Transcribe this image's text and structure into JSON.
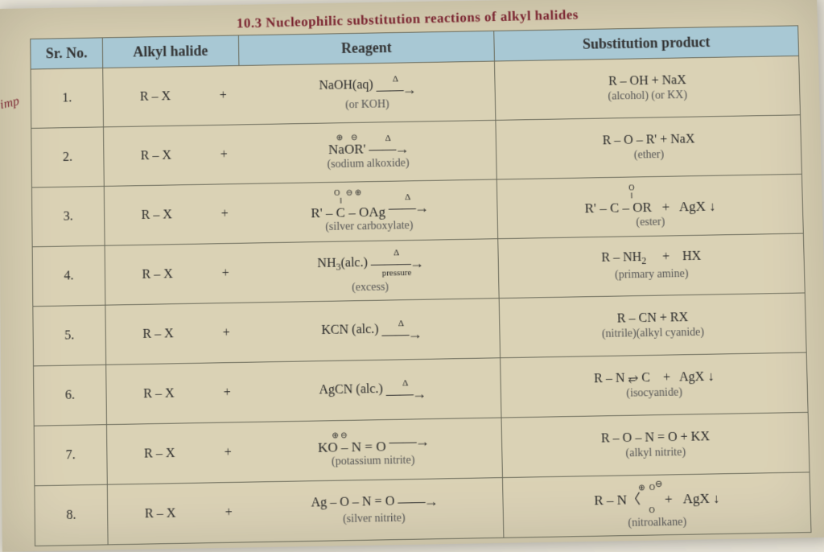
{
  "caption": "10.3 Nucleophilic substitution reactions of alkyl halides",
  "headers": {
    "sr": "Sr. No.",
    "alkyl": "Alkyl halide",
    "reagent": "Reagent",
    "product": "Substitution product"
  },
  "margin_note": "imp",
  "rows": [
    {
      "sr": "1.",
      "alkyl": "R – X",
      "plus": "+",
      "reagent_main": "NaOH(aq)",
      "reagent_note": "(or KOH)",
      "arrow": "Δ",
      "product_main": "R – OH   +   NaX",
      "product_note": "(alcohol)       (or KX)"
    },
    {
      "sr": "2.",
      "alkyl": "R – X",
      "plus": "+",
      "reagent_main": "NaOR'",
      "reagent_note": "(sodium alkoxide)",
      "arrow": "Δ",
      "product_main": "R – O – R' + NaX",
      "product_note": "(ether)"
    },
    {
      "sr": "3.",
      "alkyl": "R – X",
      "plus": "+",
      "reagent_main": "R'-C(=O)-OAg",
      "reagent_note": "(silver carboxylate)",
      "arrow": "Δ",
      "product_main": "R'-C(=O)-OR  +  AgX ↓",
      "product_note": "(ester)"
    },
    {
      "sr": "4.",
      "alkyl": "R – X",
      "plus": "+",
      "reagent_main": "NH₃(alc.)",
      "reagent_note": "(excess)",
      "arrow_top": "Δ",
      "arrow_bot": "pressure",
      "product_main": "R – NH₂     +   HX",
      "product_note": "(primary amine)"
    },
    {
      "sr": "5.",
      "alkyl": "R – X",
      "plus": "+",
      "reagent_main": "KCN (alc.)",
      "arrow": "Δ",
      "product_main": "R – CN         +  RX",
      "product_note": "(nitrile)(alkyl cyanide)"
    },
    {
      "sr": "6.",
      "alkyl": "R – X",
      "plus": "+",
      "reagent_main": "AgCN (alc.)",
      "arrow": "Δ",
      "product_main": "R – N ⇌ C    +  AgX ↓",
      "product_note": "(isocyanide)"
    },
    {
      "sr": "7.",
      "alkyl": "R – X",
      "plus": "+",
      "reagent_main": "KO – N = O",
      "reagent_note": "(potassium nitrite)",
      "arrow": "",
      "product_main": "R – O – N = O  +  KX",
      "product_note": "(alkyl nitrite)"
    },
    {
      "sr": "8.",
      "alkyl": "R – X",
      "plus": "+",
      "reagent_main": "Ag – O – N = O",
      "reagent_note": "(silver nitrite)",
      "arrow": "",
      "product_main": "R – NO₂    +   AgX ↓",
      "product_note": "(nitroalkane)"
    }
  ],
  "colors": {
    "header_bg": "#a8c8d4",
    "body_bg": "#d9d0b3",
    "caption_color": "#7a2430",
    "border_color": "#6a6a5a"
  }
}
